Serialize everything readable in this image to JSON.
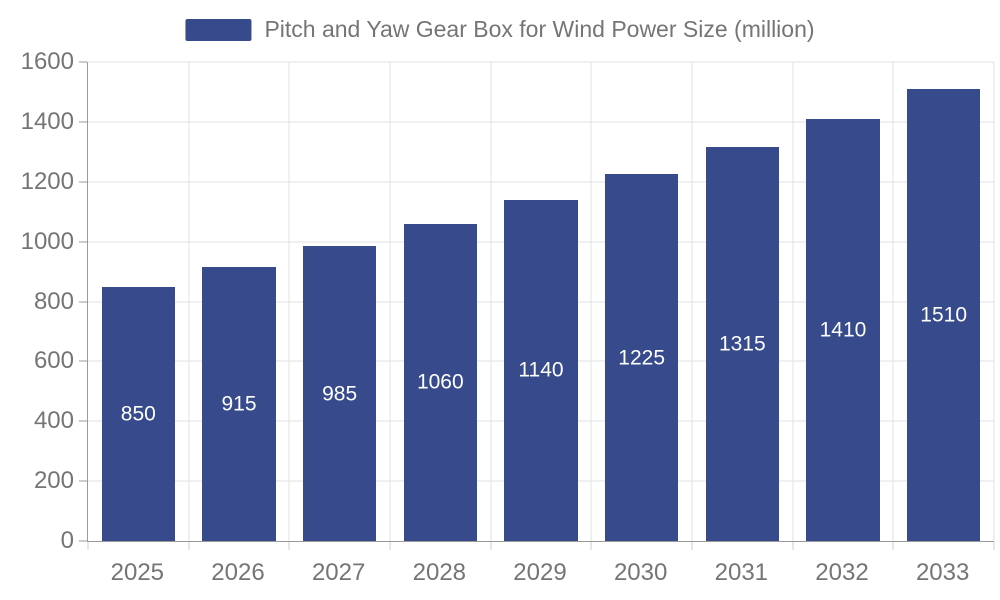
{
  "legend": {
    "label": "Pitch and Yaw Gear Box for Wind Power Size (million)"
  },
  "colors": {
    "background": "#FFFFFF",
    "bar": "#364A8C",
    "axis_line": "#999999",
    "grid_line": "#E2E2E2",
    "x_tick": "#CCCCCC",
    "axis_label": "#757575",
    "title_text": "#757575",
    "bar_label": "#FFFFFF"
  },
  "chart_data": {
    "type": "bar",
    "title": "Pitch and Yaw Gear Box for Wind Power Size (million)",
    "categories": [
      "2025",
      "2026",
      "2027",
      "2028",
      "2029",
      "2030",
      "2031",
      "2032",
      "2033"
    ],
    "series": [
      {
        "name": "Pitch and Yaw Gear Box for Wind Power Size (million)",
        "values": [
          850,
          915,
          985,
          1060,
          1140,
          1225,
          1315,
          1410,
          1510
        ]
      }
    ],
    "value_labels_shown": true,
    "xlabel": "",
    "ylabel": "",
    "ylim": [
      0,
      1600
    ],
    "ytick_interval": 200,
    "grid": true,
    "legend_position": "top"
  }
}
